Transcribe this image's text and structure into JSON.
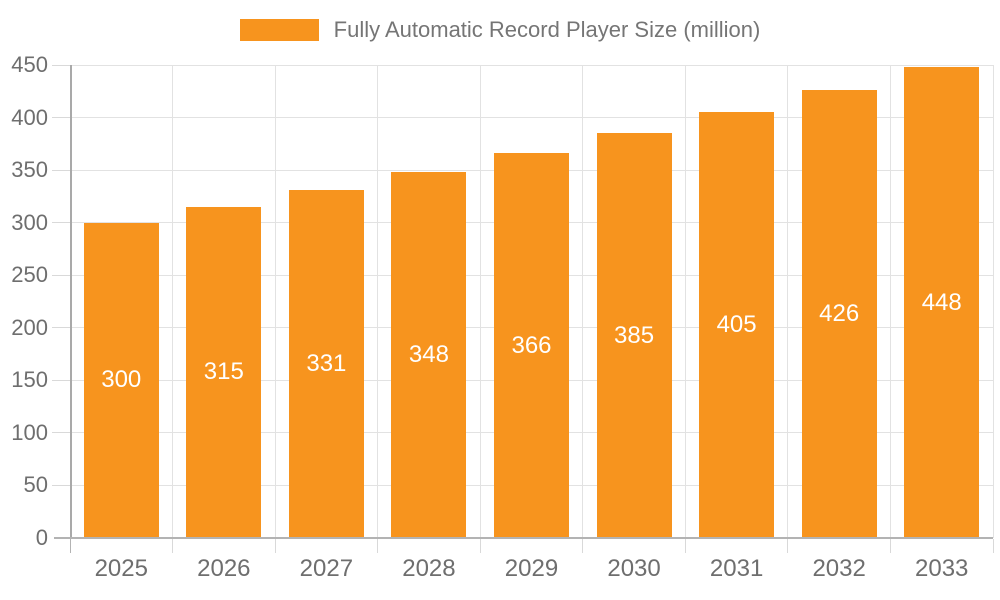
{
  "legend": {
    "label": "Fully Automatic Record Player Size (million)"
  },
  "chart_data": {
    "type": "bar",
    "title": "",
    "xlabel": "",
    "ylabel": "",
    "categories": [
      "2025",
      "2026",
      "2027",
      "2028",
      "2029",
      "2030",
      "2031",
      "2032",
      "2033"
    ],
    "series": [
      {
        "name": "Fully Automatic Record Player Size (million)",
        "values": [
          300,
          315,
          331,
          348,
          366,
          385,
          405,
          426,
          448
        ]
      }
    ],
    "value_labels": "inside-center",
    "ylim": [
      0,
      450
    ],
    "yticks": [
      0,
      50,
      100,
      150,
      200,
      250,
      300,
      350,
      400,
      450
    ],
    "grid": true,
    "legend_position": "top",
    "colors": {
      "bar": "#F7941E",
      "value_label": "#FFFFFF",
      "axis_line": "#B3B3B3",
      "grid_line": "#E2E2E2",
      "tick_line": "#D9D9D9",
      "axis_text": "#6E6E6E",
      "legend_text": "#757575",
      "background": "#FFFFFF"
    }
  }
}
